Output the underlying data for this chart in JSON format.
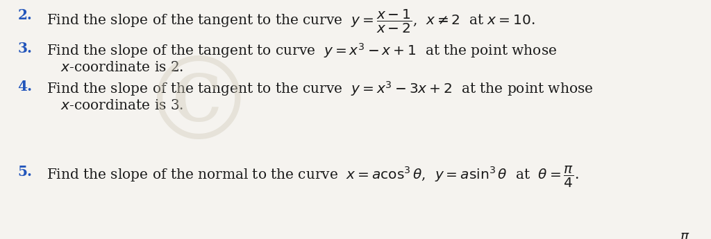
{
  "background_color": "#f5f3ef",
  "text_color": "#1a1a1a",
  "watermark_color": "#d0cab8",
  "number_color": "#2255bb",
  "font_size": 14.5,
  "figsize": [
    10.24,
    3.45
  ],
  "dpi": 100,
  "items": [
    {
      "number": "2.",
      "lines": [
        "Find the slope of the tangent to the curve  $y = \\dfrac{x-1}{x-2}$,  $x \\neq 2$  at $x = 10$."
      ],
      "indent_wrap": false
    },
    {
      "number": "3.",
      "lines": [
        "Find the slope of the tangent to curve  $y = x^3 - x + 1$  at the point whose",
        "$x$-coordinate is 2."
      ],
      "indent_wrap": true
    },
    {
      "number": "4.",
      "lines": [
        "Find the slope of the tangent to the curve  $y = x^3 - 3x + 2$  at the point whose",
        "$x$-coordinate is 3."
      ],
      "indent_wrap": true
    },
    {
      "number": "5.",
      "lines": [
        "Find the slope of the normal to the curve  $x = a\\cos^3\\theta$,  $y = a\\sin^3\\theta$  at  $\\theta = \\dfrac{\\pi}{4}$."
      ],
      "indent_wrap": false
    }
  ]
}
